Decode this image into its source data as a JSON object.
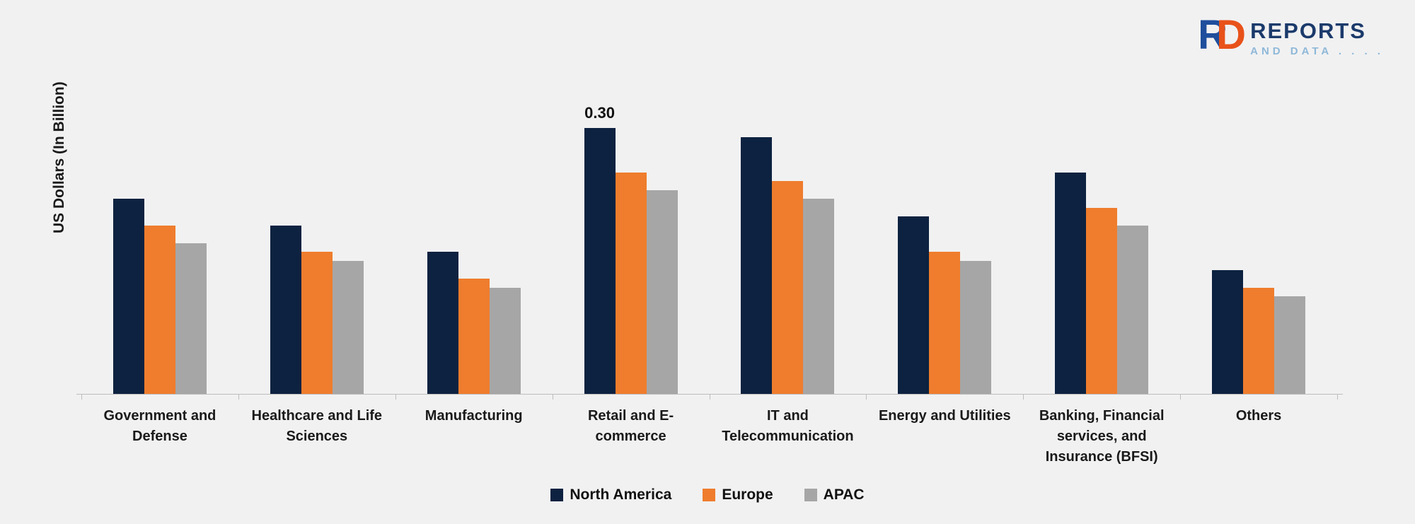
{
  "logo": {
    "icon_text": "RD",
    "icon_letter_r": "R",
    "icon_letter_d": "D",
    "title": "REPORTS",
    "subtitle": "AND DATA . . . ."
  },
  "colors": {
    "north_america": "#0d2240",
    "europe": "#ef7d2d",
    "apac": "#a6a6a6",
    "background": "#f1f1f2",
    "axis": "#bdbdbd"
  },
  "chart_data": {
    "type": "bar",
    "title": "",
    "xlabel": "",
    "ylabel": "US Dollars  (In Billion)",
    "ylim": [
      0,
      0.32
    ],
    "grid": false,
    "legend_position": "bottom",
    "categories": [
      "Government and Defense",
      "Healthcare and Life Sciences",
      "Manufacturing",
      "Retail and E-commerce",
      "IT and Telecommunication",
      "Energy and Utilities",
      "Banking, Financial services, and Insurance (BFSI)",
      "Others"
    ],
    "series": [
      {
        "name": "North America",
        "color": "#0d2240",
        "values": [
          0.22,
          0.19,
          0.16,
          0.3,
          0.29,
          0.2,
          0.25,
          0.14
        ]
      },
      {
        "name": "Europe",
        "color": "#ef7d2d",
        "values": [
          0.19,
          0.16,
          0.13,
          0.25,
          0.24,
          0.16,
          0.21,
          0.12
        ]
      },
      {
        "name": "APAC",
        "color": "#a6a6a6",
        "values": [
          0.17,
          0.15,
          0.12,
          0.23,
          0.22,
          0.15,
          0.19,
          0.11
        ]
      }
    ],
    "annotations": [
      {
        "series": "North America",
        "category": "Retail and E-commerce",
        "text": "0.30"
      }
    ]
  }
}
